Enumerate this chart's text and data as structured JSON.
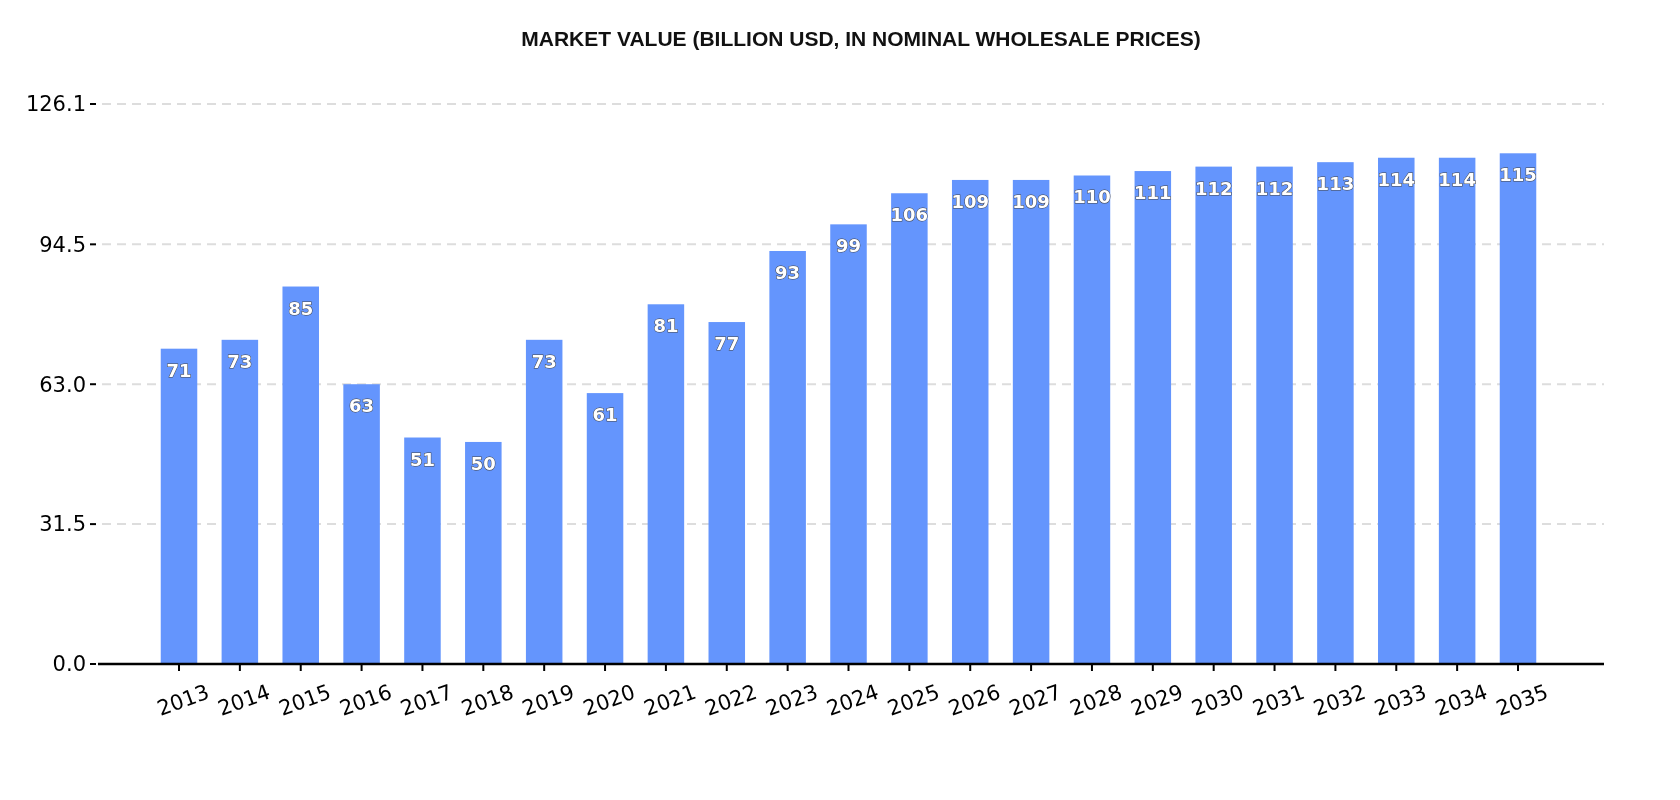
{
  "chart_data": {
    "type": "bar",
    "title": "MARKET VALUE (BILLION USD, IN NOMINAL WHOLESALE PRICES)",
    "categories": [
      "2013",
      "2014",
      "2015",
      "2016",
      "2017",
      "2018",
      "2019",
      "2020",
      "2021",
      "2022",
      "2023",
      "2024",
      "2025",
      "2026",
      "2027",
      "2028",
      "2029",
      "2030",
      "2031",
      "2032",
      "2033",
      "2034",
      "2035"
    ],
    "values": [
      71,
      73,
      85,
      63,
      51,
      50,
      73,
      61,
      81,
      77,
      93,
      99,
      106,
      109,
      109,
      110,
      111,
      112,
      112,
      113,
      114,
      114,
      115
    ],
    "color": "#6495fd",
    "ylim": [
      0,
      126.1
    ],
    "yticks": [
      {
        "value": 0,
        "label": "0.0"
      },
      31.5,
      {
        "value": 63,
        "label": "63.0"
      },
      94.5,
      126.1
    ],
    "grid": "y",
    "data_labels": true
  }
}
